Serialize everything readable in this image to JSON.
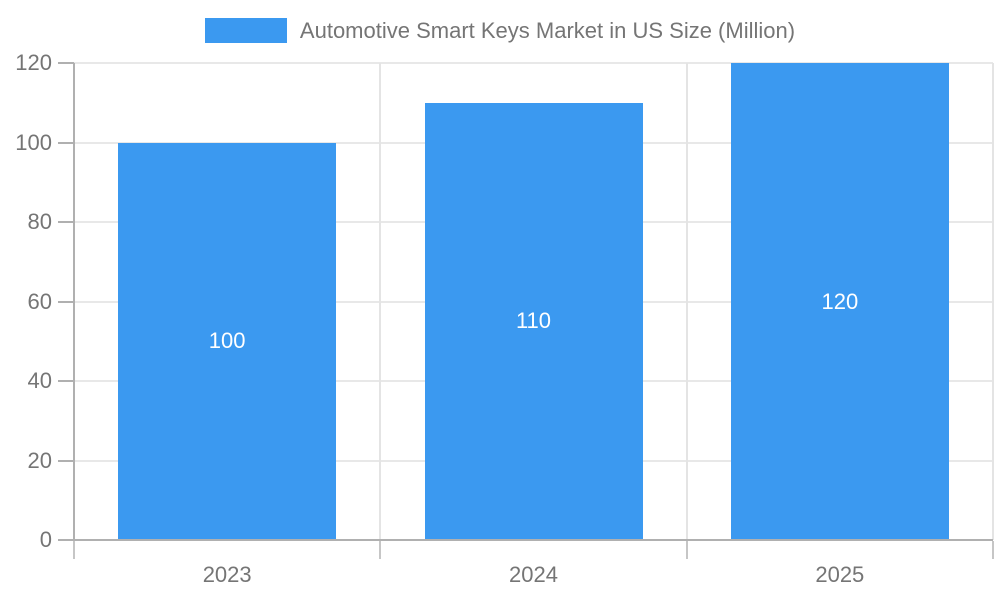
{
  "chart_data": {
    "type": "bar",
    "title": "Automotive Smart Keys Market in US Size (Million)",
    "legend": {
      "position": "top",
      "label": "Automotive Smart Keys Market in US Size (Million)"
    },
    "categories": [
      "2023",
      "2024",
      "2025"
    ],
    "values": [
      100,
      110,
      120
    ],
    "bar_labels": [
      "100",
      "110",
      "120"
    ],
    "xlabel": "",
    "ylabel": "",
    "ylim": [
      0,
      120
    ],
    "yticks": [
      0,
      20,
      40,
      60,
      80,
      100,
      120
    ],
    "grid": true,
    "colors": {
      "bar": "#3B99F0",
      "bar_label": "#FFFFFF",
      "axis_text": "#757575",
      "axis_line": "#B0B0B0",
      "gridline": "#E8E8E8",
      "boundary_gridline": "#E4E4E4",
      "x_tick": "#C6C6C6",
      "background": "#FFFFFF"
    }
  }
}
